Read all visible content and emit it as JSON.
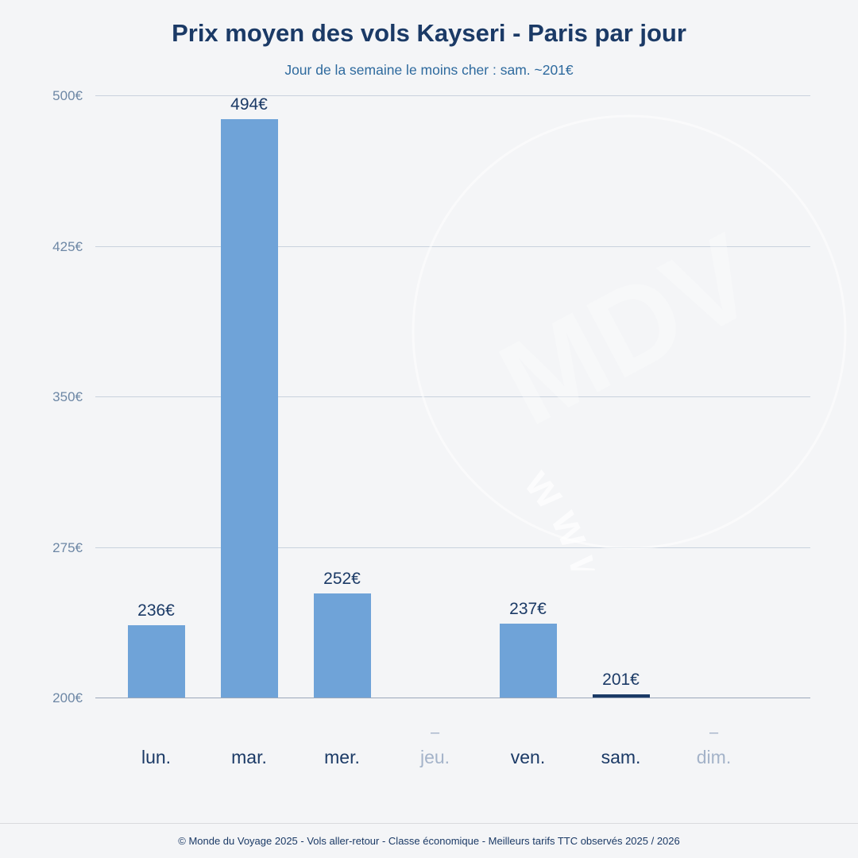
{
  "page": {
    "background": "#f4f5f7"
  },
  "chart_data": {
    "type": "bar",
    "title": "Prix moyen des vols Kayseri - Paris par jour",
    "subtitle": "Jour de la semaine le moins cher : sam. ~201€",
    "categories": [
      "lun.",
      "mar.",
      "mer.",
      "jeu.",
      "ven.",
      "sam.",
      "dim."
    ],
    "values": [
      236,
      494,
      252,
      null,
      237,
      201,
      null
    ],
    "value_labels": [
      "236€",
      "494€",
      "252€",
      "",
      "237€",
      "201€",
      ""
    ],
    "empty_marker": "–",
    "ylim": [
      200,
      500
    ],
    "yticks": [
      "500€",
      "425€",
      "350€",
      "275€",
      "200€"
    ],
    "bar_color": "#6fa3d8",
    "highlight_color": "#1b3a66",
    "highlight_index": 5,
    "grid": true,
    "legend_position": "none"
  },
  "watermark": {
    "ring_text": "www.monde-du-voyage.com ·",
    "center_text": "MDV"
  },
  "footer": {
    "text": "© Monde du Voyage 2025 - Vols aller-retour - Classe économique - Meilleurs tarifs TTC observés 2025 / 2026"
  }
}
